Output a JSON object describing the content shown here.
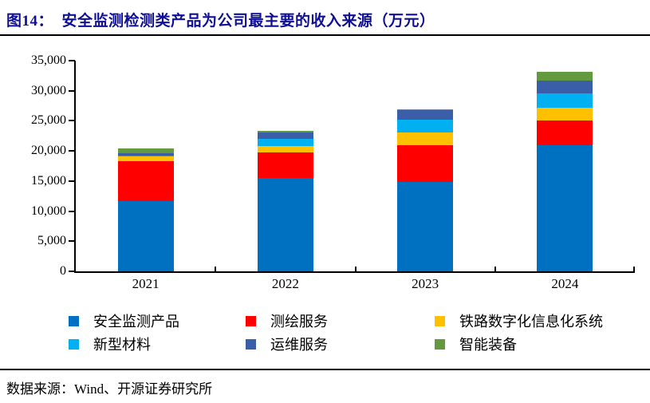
{
  "header": {
    "title": "图14：  安全监测检测类产品为公司最主要的收入来源（万元）"
  },
  "source": {
    "label": "数据来源：Wind、开源证券研究所"
  },
  "chart_data": {
    "type": "bar",
    "stacked": true,
    "title": "安全监测检测类产品为公司最主要的收入来源（万元）",
    "xlabel": "",
    "ylabel": "",
    "unit": "万元",
    "categories": [
      "2021",
      "2022",
      "2023",
      "2024"
    ],
    "series": [
      {
        "name": "安全监测产品",
        "color": "#0070C0",
        "values": [
          11700,
          15500,
          14800,
          21000
        ]
      },
      {
        "name": "测绘服务",
        "color": "#FF0000",
        "values": [
          6550,
          4200,
          6200,
          4000
        ]
      },
      {
        "name": "铁路数字化信息化系统",
        "color": "#FFC000",
        "values": [
          800,
          1150,
          2100,
          2200
        ]
      },
      {
        "name": "新型材料",
        "color": "#00B0F0",
        "values": [
          150,
          1150,
          2100,
          2350
        ]
      },
      {
        "name": "运维服务",
        "color": "#3A5EA8",
        "values": [
          450,
          1050,
          1550,
          2200
        ]
      },
      {
        "name": "智能装备",
        "color": "#63993F",
        "values": [
          800,
          250,
          150,
          1450
        ]
      }
    ],
    "totals": [
      20450,
      23300,
      26900,
      33200
    ],
    "ylim": [
      0,
      35000
    ],
    "y_tick_step": 5000,
    "y_ticks": [
      "0",
      "5,000",
      "10,000",
      "15,000",
      "20,000",
      "25,000",
      "30,000",
      "35,000"
    ],
    "grid": false,
    "legend_position": "bottom"
  }
}
